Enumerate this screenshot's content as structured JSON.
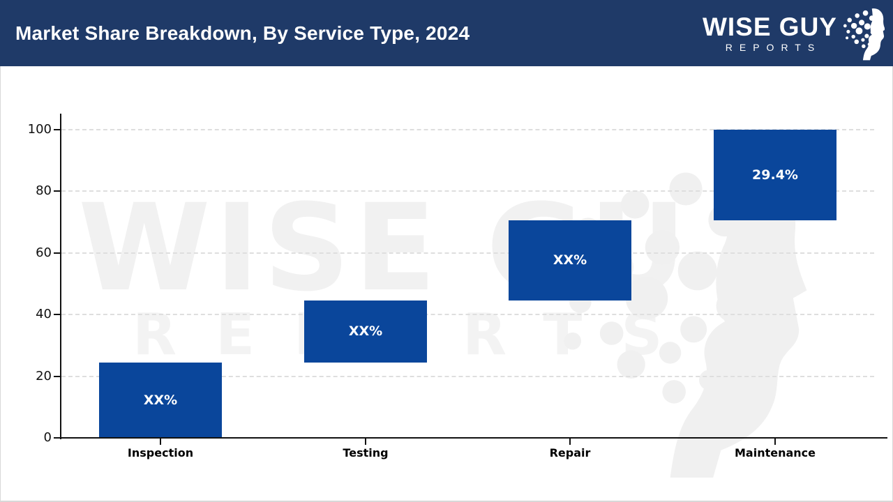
{
  "header": {
    "title": "Market Share Breakdown, By Service Type, 2024",
    "bg_color": "#1f3a68",
    "logo": {
      "name": "WISE GUY",
      "tagline": "REPORTS",
      "head_icon": "dotted-head-profile-icon"
    }
  },
  "watermark": {
    "line1": "WISE GU",
    "line2": "REPORTS"
  },
  "chart_data": {
    "type": "bar",
    "subtype": "floating-waterfall",
    "title": "Market Share Breakdown, By Service Type, 2024",
    "categories": [
      "Inspection",
      "Testing",
      "Repair",
      "Maintenance"
    ],
    "segments": [
      [
        0,
        24.4
      ],
      [
        24.5,
        44.6
      ],
      [
        44.6,
        70.6
      ],
      [
        70.6,
        100
      ]
    ],
    "values": [
      24.4,
      20.1,
      26.0,
      29.4
    ],
    "bar_labels": [
      "XX%",
      "XX%",
      "XX%",
      "29.4%"
    ],
    "bar_color": "#0a469b",
    "bar_label_color": "#ffffff",
    "xlabel": "",
    "ylabel": "",
    "ylim": [
      0,
      100
    ],
    "yticks": [
      0,
      20,
      40,
      60,
      80,
      100
    ],
    "grid": "horizontal-dashed",
    "gridline_color": "#dedede",
    "legend": "none"
  }
}
